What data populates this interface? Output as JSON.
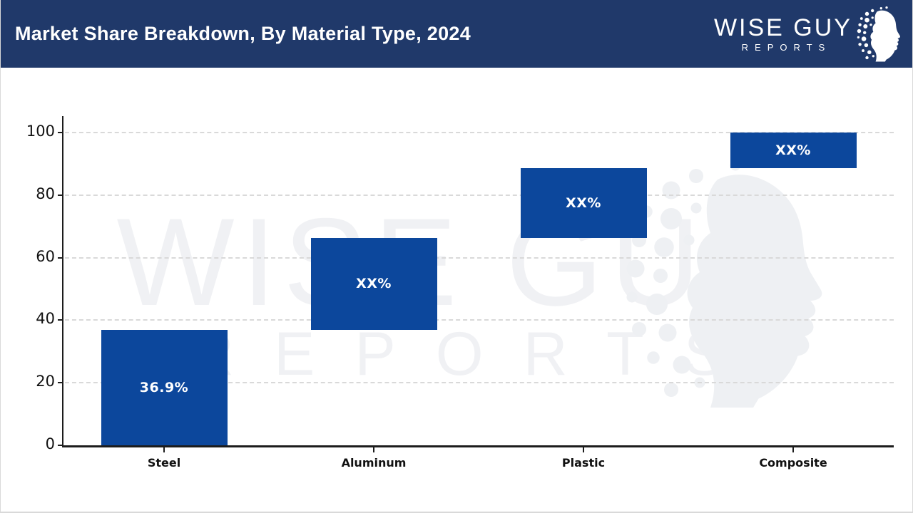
{
  "header": {
    "title": "Market Share Breakdown, By Material Type, 2024",
    "logo": {
      "name_line": "WISE GUY",
      "sub_line": "REPORTS"
    }
  },
  "watermark": {
    "name_line": "WISE GUY",
    "sub_line": "REPORTS"
  },
  "chart_data": {
    "type": "bar",
    "variant": "waterfall-stacked-segments",
    "title": "Market Share Breakdown, By Material Type, 2024",
    "xlabel": "",
    "ylabel": "",
    "ylim": [
      0,
      100
    ],
    "yticks": [
      0,
      20,
      40,
      60,
      80,
      100
    ],
    "grid": "horizontal-dashed",
    "legend": "none",
    "categories": [
      "Steel",
      "Aluminum",
      "Plastic",
      "Composite"
    ],
    "segments": [
      {
        "category": "Steel",
        "start": 0,
        "end": 36.9,
        "label": "36.9%"
      },
      {
        "category": "Aluminum",
        "start": 36.9,
        "end": 66.3,
        "label": "XX%"
      },
      {
        "category": "Plastic",
        "start": 66.3,
        "end": 88.5,
        "label": "XX%"
      },
      {
        "category": "Composite",
        "start": 88.5,
        "end": 100,
        "label": "XX%"
      }
    ],
    "bar_color": "#0c479c",
    "bar_label_color": "#ffffff"
  },
  "colors": {
    "header_bg": "#20396a",
    "axis": "#1c1c1c",
    "grid": "#d9d9d9",
    "watermark": "#f0f1f4",
    "watermark_head": "#eef0f3"
  }
}
